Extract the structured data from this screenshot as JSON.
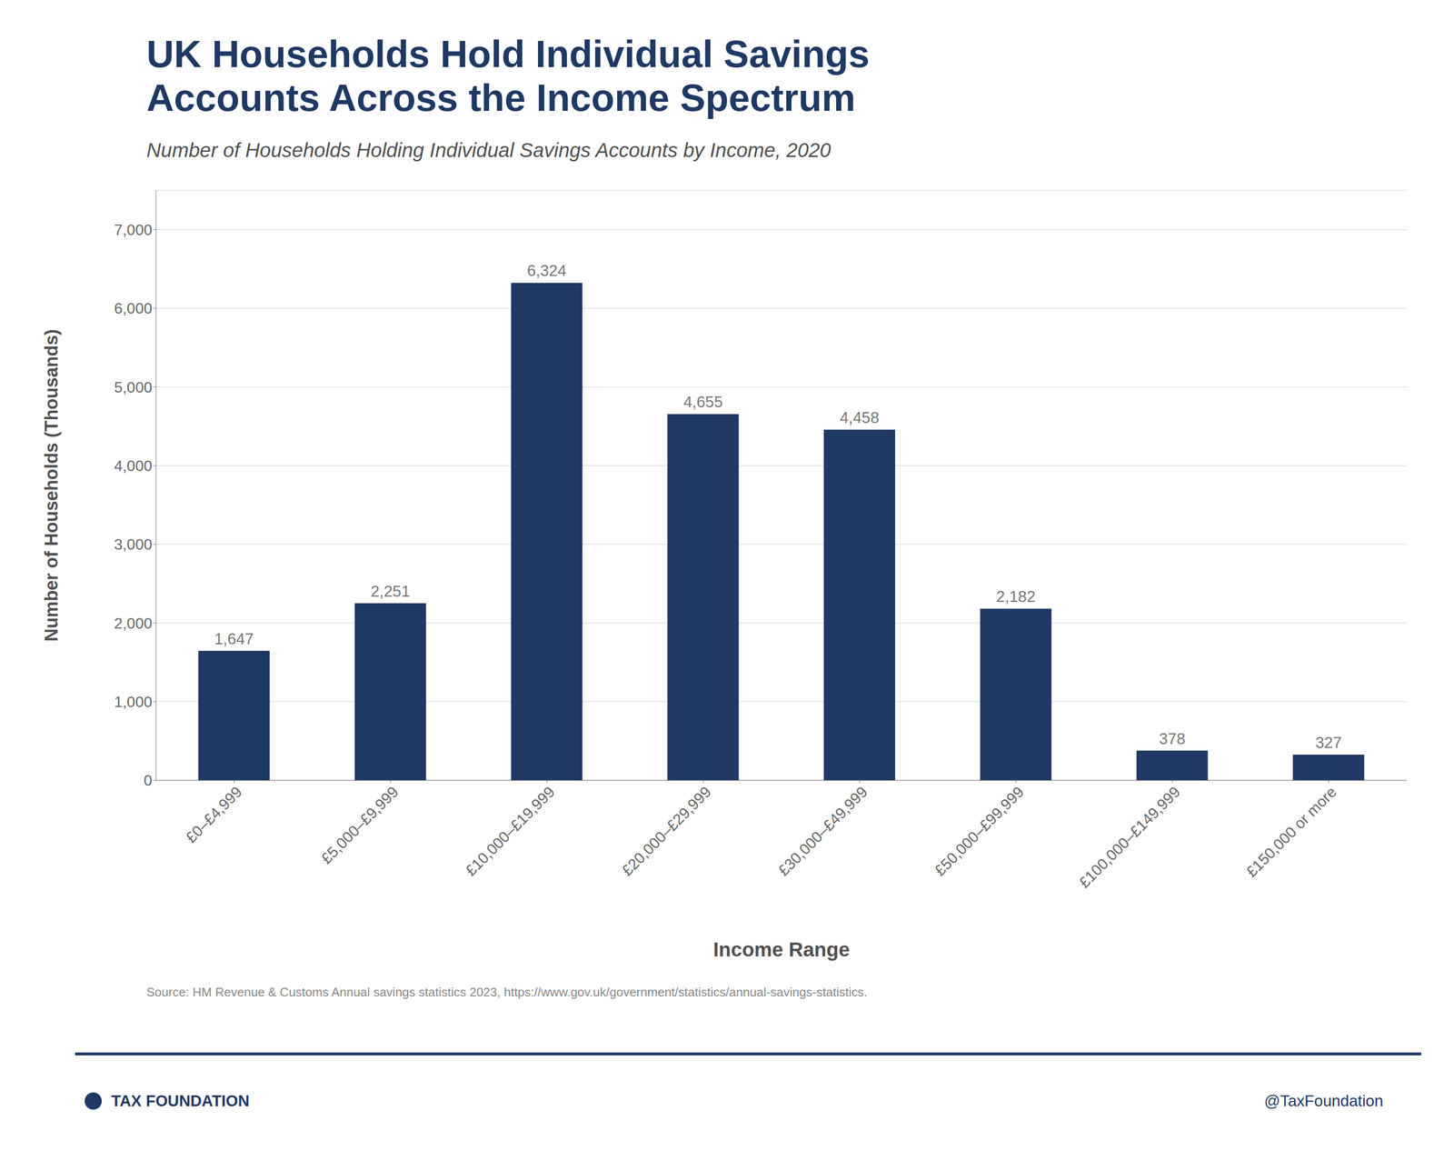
{
  "chart_data": {
    "type": "bar",
    "title": "UK Households Hold Individual Savings\nAccounts Across the Income Spectrum",
    "subtitle": "Number of Households Holding Individual Savings Accounts by Income, 2020",
    "xlabel": "Income Range",
    "ylabel": "Number of Households (Thousands)",
    "categories": [
      "£0–£4,999",
      "£5,000–£9,999",
      "£10,000–£19,999",
      "£20,000–£29,999",
      "£30,000–£49,999",
      "£50,000–£99,999",
      "£100,000–£149,999",
      "£150,000 or more"
    ],
    "values": [
      1647,
      2251,
      6324,
      4655,
      4458,
      2182,
      378,
      327
    ],
    "value_labels": [
      "1,647",
      "2,251",
      "6,324",
      "4,655",
      "4,458",
      "2,182",
      "378",
      "327"
    ],
    "data_labels": true,
    "color": "#1f3864",
    "ylim": [
      0,
      7500
    ],
    "yticks": [
      0,
      {
        "value": 1000,
        "label": "1,000"
      },
      {
        "value": 2000,
        "label": "2,000"
      },
      {
        "value": 3000,
        "label": "3,000"
      },
      {
        "value": 4000,
        "label": "4,000"
      },
      {
        "value": 5000,
        "label": "5,000"
      },
      {
        "value": 6000,
        "label": "6,000"
      },
      {
        "value": 7000,
        "label": "7,000"
      }
    ],
    "grid": true,
    "annotations": [
      "Source: HM Revenue & Customs Annual savings statistics 2023, https://www.gov.uk/government/statistics/annual-savings-statistics.",
      "TAX FOUNDATION",
      "@TaxFoundation"
    ]
  }
}
